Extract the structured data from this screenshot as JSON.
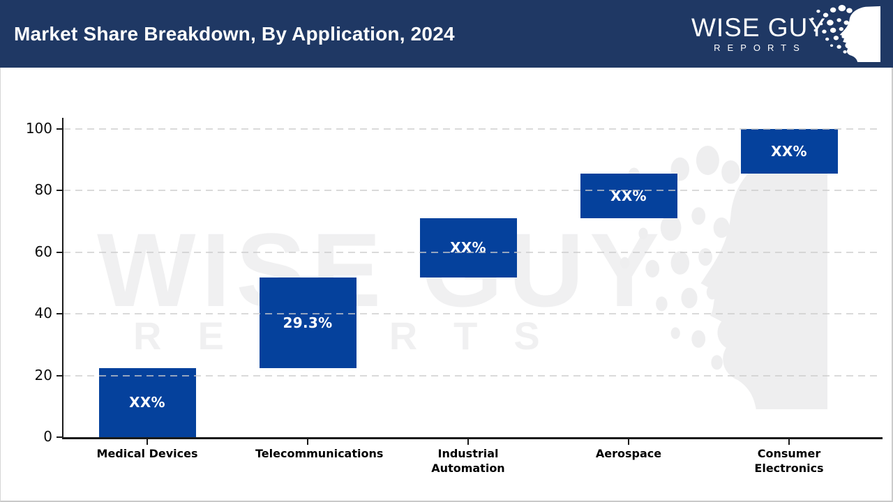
{
  "header": {
    "title": "Market Share Breakdown, By Application, 2024",
    "bg_color": "#1f3864",
    "logo": {
      "line1": "WISE GUY",
      "line2": "REPORTS"
    }
  },
  "watermark": {
    "line1": "WISE GUY",
    "line2": "REPORTS"
  },
  "chart_data": {
    "type": "bar",
    "variant": "floating-waterfall",
    "title": "Market Share Breakdown, By Application, 2024",
    "xlabel": "",
    "ylabel": "",
    "categories": [
      "Medical Devices",
      "Telecommunications",
      "Industrial Automation",
      "Aerospace",
      "Consumer Electronics"
    ],
    "bars": [
      {
        "category": "Medical Devices",
        "start": 0,
        "end": 22.5,
        "label": "XX%"
      },
      {
        "category": "Telecommunications",
        "start": 22.5,
        "end": 51.8,
        "label": "29.3%"
      },
      {
        "category": "Industrial Automation",
        "start": 51.8,
        "end": 71.1,
        "label": "XX%"
      },
      {
        "category": "Aerospace",
        "start": 71.1,
        "end": 85.6,
        "label": "XX%"
      },
      {
        "category": "Consumer Electronics",
        "start": 85.6,
        "end": 100,
        "label": "XX%"
      }
    ],
    "y_ticks": [
      0,
      20,
      40,
      60,
      80,
      100
    ],
    "ylim": [
      0,
      103
    ],
    "bar_color": "#05419c",
    "grid": "horizontal-dashed",
    "gridline_color": "#d9d9d9",
    "legend": "none"
  }
}
